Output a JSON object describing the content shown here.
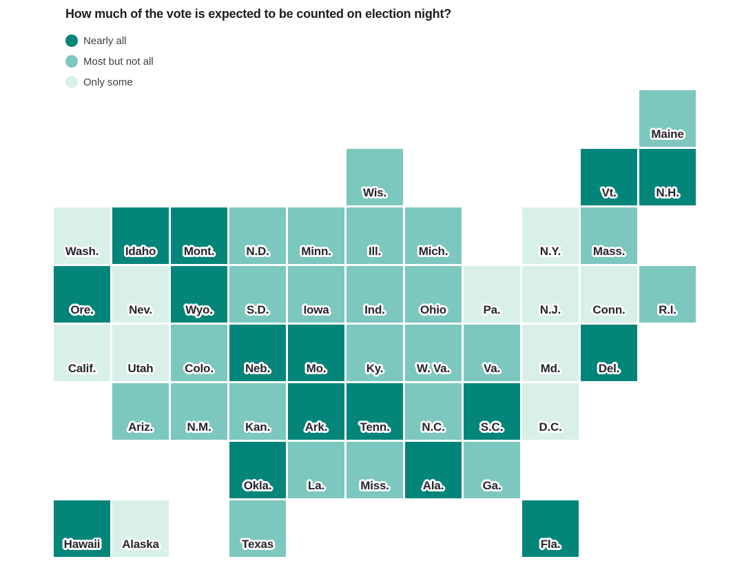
{
  "title": "How much of the vote is expected to be counted on election night?",
  "legend": {
    "items": [
      {
        "id": "nearly-all",
        "label": "Nearly all",
        "color": "#048579"
      },
      {
        "id": "most-but-not-all",
        "label": "Most but not all",
        "color": "#7cc7be"
      },
      {
        "id": "only-some",
        "label": "Only some",
        "color": "#d8f0e9"
      }
    ]
  },
  "chart_data": {
    "type": "heatmap",
    "subtype": "state-tile-cartogram",
    "title": "How much of the vote is expected to be counted on election night?",
    "categories": [
      "Nearly all",
      "Most but not all",
      "Only some"
    ],
    "colors": {
      "Nearly all": "#048579",
      "Most but not all": "#7cc7be",
      "Only some": "#d8f0e9"
    },
    "legend_position": "top-left",
    "grid": {
      "columns": 11,
      "rows": 8
    },
    "states": [
      {
        "label": "Maine",
        "col": 11,
        "row": 1,
        "category": "Most but not all"
      },
      {
        "label": "Wis.",
        "col": 6,
        "row": 2,
        "category": "Most but not all"
      },
      {
        "label": "Vt.",
        "col": 10,
        "row": 2,
        "category": "Nearly all"
      },
      {
        "label": "N.H.",
        "col": 11,
        "row": 2,
        "category": "Nearly all"
      },
      {
        "label": "Wash.",
        "col": 1,
        "row": 3,
        "category": "Only some"
      },
      {
        "label": "Idaho",
        "col": 2,
        "row": 3,
        "category": "Nearly all"
      },
      {
        "label": "Mont.",
        "col": 3,
        "row": 3,
        "category": "Nearly all"
      },
      {
        "label": "N.D.",
        "col": 4,
        "row": 3,
        "category": "Most but not all"
      },
      {
        "label": "Minn.",
        "col": 5,
        "row": 3,
        "category": "Most but not all"
      },
      {
        "label": "Ill.",
        "col": 6,
        "row": 3,
        "category": "Most but not all"
      },
      {
        "label": "Mich.",
        "col": 7,
        "row": 3,
        "category": "Most but not all"
      },
      {
        "label": "N.Y.",
        "col": 9,
        "row": 3,
        "category": "Only some"
      },
      {
        "label": "Mass.",
        "col": 10,
        "row": 3,
        "category": "Most but not all"
      },
      {
        "label": "Ore.",
        "col": 1,
        "row": 4,
        "category": "Nearly all"
      },
      {
        "label": "Nev.",
        "col": 2,
        "row": 4,
        "category": "Only some"
      },
      {
        "label": "Wyo.",
        "col": 3,
        "row": 4,
        "category": "Nearly all"
      },
      {
        "label": "S.D.",
        "col": 4,
        "row": 4,
        "category": "Most but not all"
      },
      {
        "label": "Iowa",
        "col": 5,
        "row": 4,
        "category": "Most but not all"
      },
      {
        "label": "Ind.",
        "col": 6,
        "row": 4,
        "category": "Most but not all"
      },
      {
        "label": "Ohio",
        "col": 7,
        "row": 4,
        "category": "Most but not all"
      },
      {
        "label": "Pa.",
        "col": 8,
        "row": 4,
        "category": "Only some"
      },
      {
        "label": "N.J.",
        "col": 9,
        "row": 4,
        "category": "Only some"
      },
      {
        "label": "Conn.",
        "col": 10,
        "row": 4,
        "category": "Only some"
      },
      {
        "label": "R.I.",
        "col": 11,
        "row": 4,
        "category": "Most but not all"
      },
      {
        "label": "Calif.",
        "col": 1,
        "row": 5,
        "category": "Only some"
      },
      {
        "label": "Utah",
        "col": 2,
        "row": 5,
        "category": "Only some"
      },
      {
        "label": "Colo.",
        "col": 3,
        "row": 5,
        "category": "Most but not all"
      },
      {
        "label": "Neb.",
        "col": 4,
        "row": 5,
        "category": "Nearly all"
      },
      {
        "label": "Mo.",
        "col": 5,
        "row": 5,
        "category": "Nearly all"
      },
      {
        "label": "Ky.",
        "col": 6,
        "row": 5,
        "category": "Most but not all"
      },
      {
        "label": "W. Va.",
        "col": 7,
        "row": 5,
        "category": "Most but not all"
      },
      {
        "label": "Va.",
        "col": 8,
        "row": 5,
        "category": "Most but not all"
      },
      {
        "label": "Md.",
        "col": 9,
        "row": 5,
        "category": "Only some"
      },
      {
        "label": "Del.",
        "col": 10,
        "row": 5,
        "category": "Nearly all"
      },
      {
        "label": "Ariz.",
        "col": 2,
        "row": 6,
        "category": "Most but not all"
      },
      {
        "label": "N.M.",
        "col": 3,
        "row": 6,
        "category": "Most but not all"
      },
      {
        "label": "Kan.",
        "col": 4,
        "row": 6,
        "category": "Most but not all"
      },
      {
        "label": "Ark.",
        "col": 5,
        "row": 6,
        "category": "Nearly all"
      },
      {
        "label": "Tenn.",
        "col": 6,
        "row": 6,
        "category": "Nearly all"
      },
      {
        "label": "N.C.",
        "col": 7,
        "row": 6,
        "category": "Most but not all"
      },
      {
        "label": "S.C.",
        "col": 8,
        "row": 6,
        "category": "Nearly all"
      },
      {
        "label": "D.C.",
        "col": 9,
        "row": 6,
        "category": "Only some"
      },
      {
        "label": "Okla.",
        "col": 4,
        "row": 7,
        "category": "Nearly all"
      },
      {
        "label": "La.",
        "col": 5,
        "row": 7,
        "category": "Most but not all"
      },
      {
        "label": "Miss.",
        "col": 6,
        "row": 7,
        "category": "Most but not all"
      },
      {
        "label": "Ala.",
        "col": 7,
        "row": 7,
        "category": "Nearly all"
      },
      {
        "label": "Ga.",
        "col": 8,
        "row": 7,
        "category": "Most but not all"
      },
      {
        "label": "Hawaii",
        "col": 1,
        "row": 8,
        "category": "Nearly all"
      },
      {
        "label": "Alaska",
        "col": 2,
        "row": 8,
        "category": "Only some"
      },
      {
        "label": "Texas",
        "col": 4,
        "row": 8,
        "category": "Most but not all"
      },
      {
        "label": "Fla.",
        "col": 9,
        "row": 8,
        "category": "Nearly all"
      }
    ]
  }
}
